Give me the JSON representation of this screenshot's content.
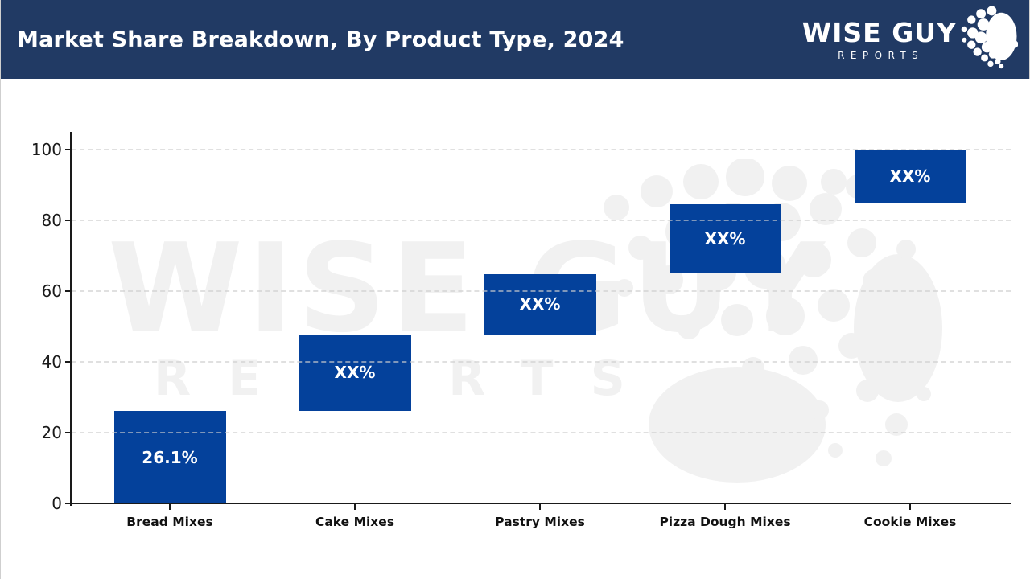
{
  "header": {
    "title": "Market Share Breakdown, By Product Type, 2024",
    "logo": {
      "line1": "WISE GUY",
      "line2": "REPORTS"
    }
  },
  "watermark": {
    "line1": "WISE GUY",
    "line2": "REPORTS"
  },
  "chart_data": {
    "type": "bar",
    "subtype": "waterfall",
    "title": "Market Share Breakdown, By Product Type, 2024",
    "categories": [
      "Bread Mixes",
      "Cake Mixes",
      "Pastry Mixes",
      "Pizza Dough Mixes",
      "Cookie Mixes"
    ],
    "segments": [
      {
        "category": "Bread Mixes",
        "start": 0,
        "end": 26.1,
        "label": "26.1%"
      },
      {
        "category": "Cake Mixes",
        "start": 26.1,
        "end": 47.8,
        "label": "XX%"
      },
      {
        "category": "Pastry Mixes",
        "start": 47.8,
        "end": 64.8,
        "label": "XX%"
      },
      {
        "category": "Pizza Dough Mixes",
        "start": 65.1,
        "end": 84.6,
        "label": "XX%"
      },
      {
        "category": "Cookie Mixes",
        "start": 84.9,
        "end": 100,
        "label": "XX%"
      }
    ],
    "yticks": [
      0,
      20,
      40,
      60,
      80,
      100
    ],
    "ylim": [
      0,
      104
    ],
    "xlabel": "",
    "ylabel": "",
    "legend": "none",
    "grid": {
      "axis": "y",
      "style": "dashed"
    },
    "bar_color": "#04419b",
    "bar_label_color": "#ffffff"
  },
  "colors": {
    "header_bg": "#213a64",
    "page_bg": "#ffffff",
    "bar": "#04419b",
    "axis": "#1a1a1a",
    "grid_line": "#d9d9d9",
    "watermark": "#f1f1f1",
    "page_border": "#cfcfcf"
  }
}
